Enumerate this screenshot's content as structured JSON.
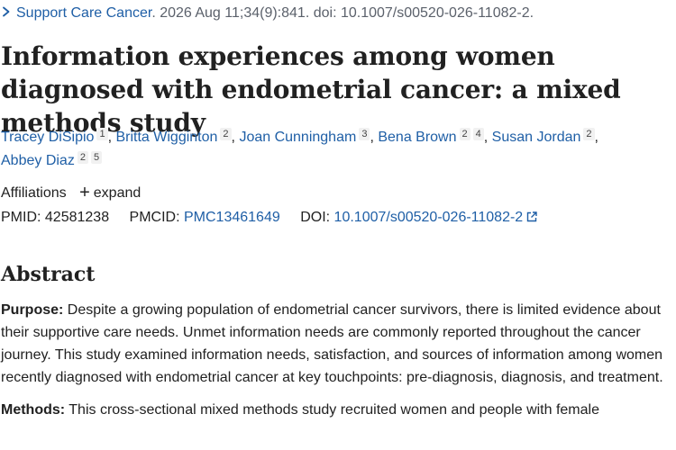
{
  "citation": {
    "journal": "Support Care Cancer",
    "details": ". 2026 Aug 11;34(9):841. doi: 10.1007/s00520-026-11082-2."
  },
  "title": "Information experiences among women diagnosed with endometrial cancer: a mixed methods study",
  "authors": [
    {
      "name": "Tracey DiSipio",
      "affils": [
        "1"
      ],
      "sep": ","
    },
    {
      "name": "Britta Wigginton",
      "affils": [
        "2"
      ],
      "sep": ","
    },
    {
      "name": "Joan Cunningham",
      "affils": [
        "3"
      ],
      "sep": ","
    },
    {
      "name": "Bena Brown",
      "affils": [
        "2",
        "4"
      ],
      "sep": ","
    },
    {
      "name": "Susan Jordan",
      "affils": [
        "2"
      ],
      "sep": ","
    },
    {
      "name": "Abbey Diaz",
      "affils": [
        "2",
        "5"
      ],
      "sep": ""
    }
  ],
  "affiliations": {
    "label": "Affiliations",
    "expand_label": "expand"
  },
  "identifiers": {
    "pmid_label": "PMID:",
    "pmid": "42581238",
    "pmcid_label": "PMCID:",
    "pmcid": "PMC13461649",
    "doi_label": "DOI:",
    "doi": "10.1007/s00520-026-11082-2"
  },
  "abstract": {
    "heading": "Abstract",
    "purpose_label": "Purpose:",
    "purpose_text": " Despite a growing population of endometrial cancer survivors, there is limited evidence about their supportive care needs. Unmet information needs are commonly reported throughout the cancer journey. This study examined information needs, satisfaction, and sources of information among women recently diagnosed with endometrial cancer at key touchpoints: pre-diagnosis, diagnosis, and treatment.",
    "methods_label": "Methods:",
    "methods_text": " This cross-sectional mixed methods study recruited women and people with female"
  },
  "icons": {
    "journal_toggle": "chevron-right-icon",
    "expand": "plus-icon",
    "external_link": "external-link-icon"
  },
  "colors": {
    "link": "#1f5fa6",
    "text": "#212121",
    "muted": "#5b616b"
  }
}
